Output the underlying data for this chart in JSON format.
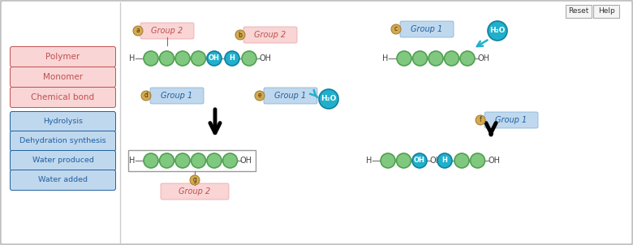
{
  "bg_outer": "#d0d0d0",
  "bg_inner": "#ffffff",
  "pink_box_fc": "#f9d5d5",
  "pink_box_ec": "#e8a0a0",
  "pink_text": "#c05050",
  "blue_box_fc": "#c0d8ee",
  "blue_box_ec": "#7aabcf",
  "blue_text": "#2060a0",
  "left_labels_pink": [
    "Polymer",
    "Monomer",
    "Chemical bond"
  ],
  "left_labels_blue": [
    "Hydrolysis",
    "Dehydration synthesis",
    "Water produced",
    "Water added"
  ],
  "green_fc": "#80c880",
  "green_ec": "#50a050",
  "cyan_fc": "#20b0cc",
  "cyan_ec": "#1080a0",
  "line_color": "#888888",
  "label_circle_fc": "#d4aa50",
  "label_circle_ec": "#a07830"
}
